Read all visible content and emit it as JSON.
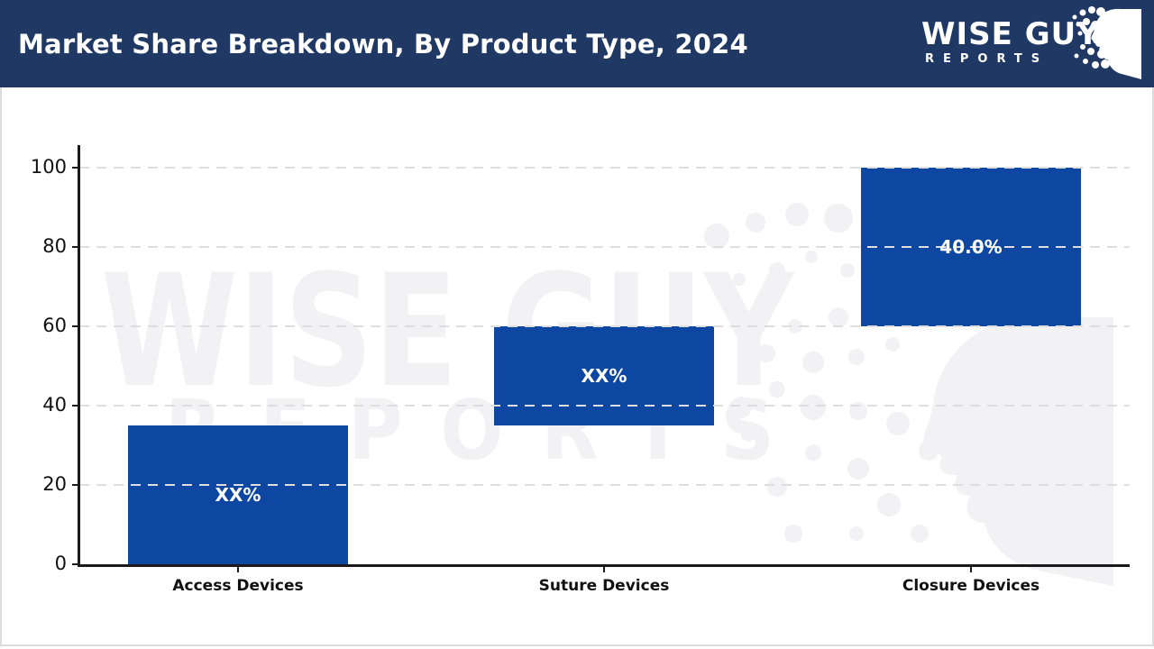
{
  "header": {
    "title": "Market Share Breakdown, By Product Type, 2024",
    "logo": {
      "primary": "WISE GUY",
      "secondary": "REPORTS"
    }
  },
  "watermark": {
    "primary": "WISE GUY",
    "secondary": "REPORTS"
  },
  "chart_data": {
    "type": "bar",
    "subtype": "floating-segment-waterfall",
    "title": "Market Share Breakdown, By Product Type, 2024",
    "categories": [
      "Access Devices",
      "Suture Devices",
      "Closure Devices"
    ],
    "segments": [
      {
        "category": "Access Devices",
        "start": 0,
        "end": 35,
        "label": "XX%"
      },
      {
        "category": "Suture Devices",
        "start": 35,
        "end": 60,
        "label": "XX%"
      },
      {
        "category": "Closure Devices",
        "start": 60,
        "end": 100,
        "label": "40.0%"
      }
    ],
    "yticks": [
      0,
      20,
      40,
      60,
      80,
      100
    ],
    "ylim": [
      0,
      105
    ],
    "xlabel": "",
    "ylabel": "",
    "grid": "horizontal-dashed",
    "legend": "none",
    "bar_color": "#0d47a1",
    "bar_label_color": "#ffffff"
  },
  "colors": {
    "header_bg": "#1f3864",
    "bar": "#0d47a1",
    "grid": "#dedede",
    "axis": "#1a1a1a",
    "watermark": "#f2f2f4"
  }
}
